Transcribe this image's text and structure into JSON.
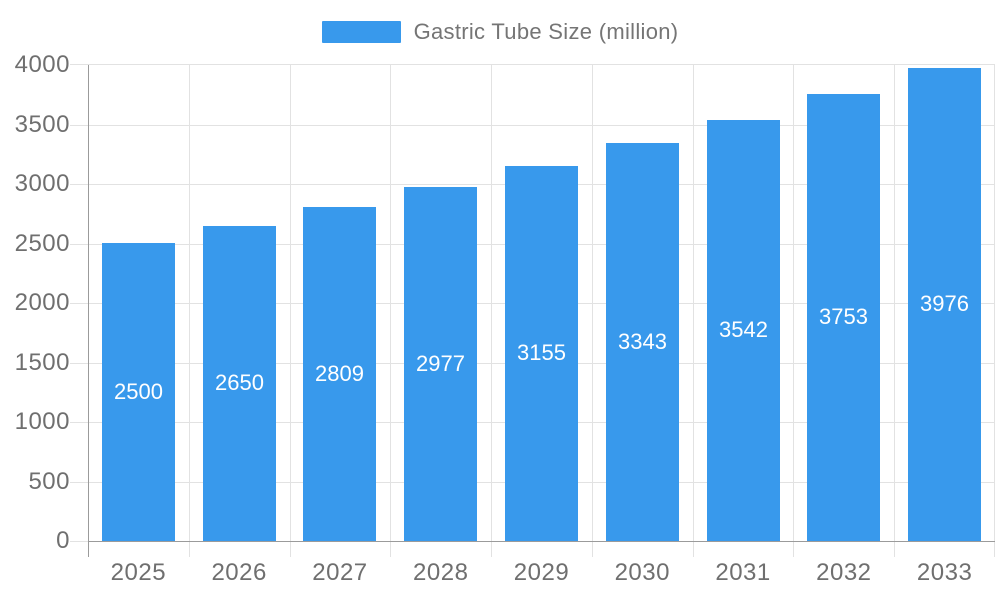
{
  "legend": {
    "label": "Gastric Tube Size (million)",
    "position": "top"
  },
  "colors": {
    "bar": "#3899EC",
    "bar_label": "#FFFFFF",
    "grid": "#E2E2E2",
    "axis": "#9B9B9B",
    "tick_label": "#6F6F6F",
    "legend_text": "#757575",
    "background": "#FFFFFF"
  },
  "chart_data": {
    "type": "bar",
    "title": "Gastric Tube Size (million)",
    "categories": [
      "2025",
      "2026",
      "2027",
      "2028",
      "2029",
      "2030",
      "2031",
      "2032",
      "2033"
    ],
    "series": [
      {
        "name": "Gastric Tube Size (million)",
        "values": [
          2500,
          2650,
          2809,
          2977,
          3155,
          3343,
          3542,
          3753,
          3976
        ]
      }
    ],
    "xlabel": "",
    "ylabel": "",
    "ylim": [
      0,
      4000
    ],
    "ytick_step": 500,
    "yticks": [
      0,
      500,
      1000,
      1500,
      2000,
      2500,
      3000,
      3500,
      4000
    ],
    "grid": true,
    "legend_position": "top",
    "bar_labels_visible": true,
    "bar_label_position": "center"
  }
}
